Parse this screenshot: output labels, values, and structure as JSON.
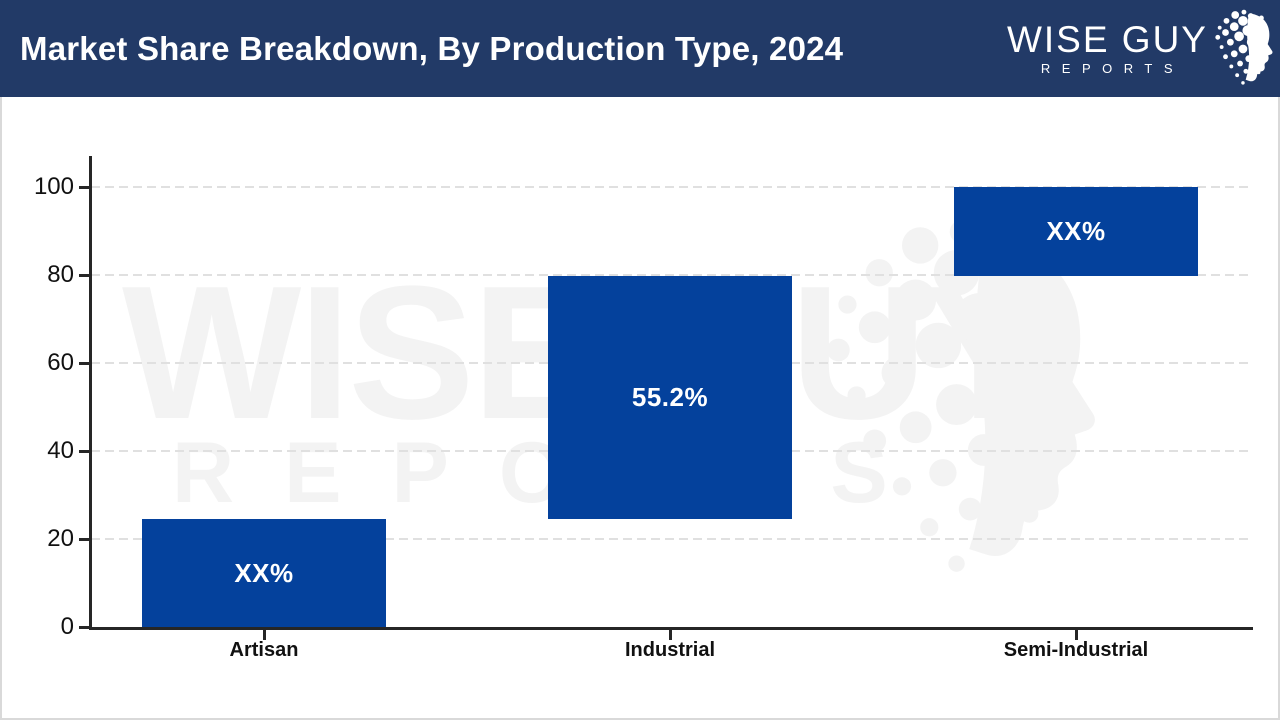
{
  "header": {
    "title": "Market Share Breakdown, By Production Type, 2024",
    "logo": {
      "line1": "WISE GUY",
      "line2": "REPORTS"
    }
  },
  "watermark": {
    "line1": "WISE GUY",
    "line2": "REPORTS"
  },
  "colors": {
    "header_bg": "#223a67",
    "bar": "#04419c",
    "axis": "#262626",
    "grid": "#e0e0e0",
    "watermark": "#f3f3f3",
    "text": "#111111",
    "bar_label": "#ffffff"
  },
  "chart_data": {
    "type": "bar",
    "subtype": "waterfall-stacked-breakdown",
    "title": "Market Share Breakdown, By Production Type, 2024",
    "categories": [
      "Artisan",
      "Industrial",
      "Semi-Industrial"
    ],
    "bars": [
      {
        "category": "Artisan",
        "from": 0,
        "to": 24.5,
        "value_est": 24.5,
        "label": "XX%"
      },
      {
        "category": "Industrial",
        "from": 24.5,
        "to": 79.7,
        "value_est": 55.2,
        "label": "55.2%"
      },
      {
        "category": "Semi-Industrial",
        "from": 79.7,
        "to": 100,
        "value_est": 20.3,
        "label": "XX%"
      }
    ],
    "xlabel": "",
    "ylabel": "",
    "ylim": [
      0,
      100
    ],
    "yticks": [
      0,
      20,
      40,
      60,
      80,
      100
    ],
    "grid": "dashed-horizontal",
    "legend": null
  }
}
